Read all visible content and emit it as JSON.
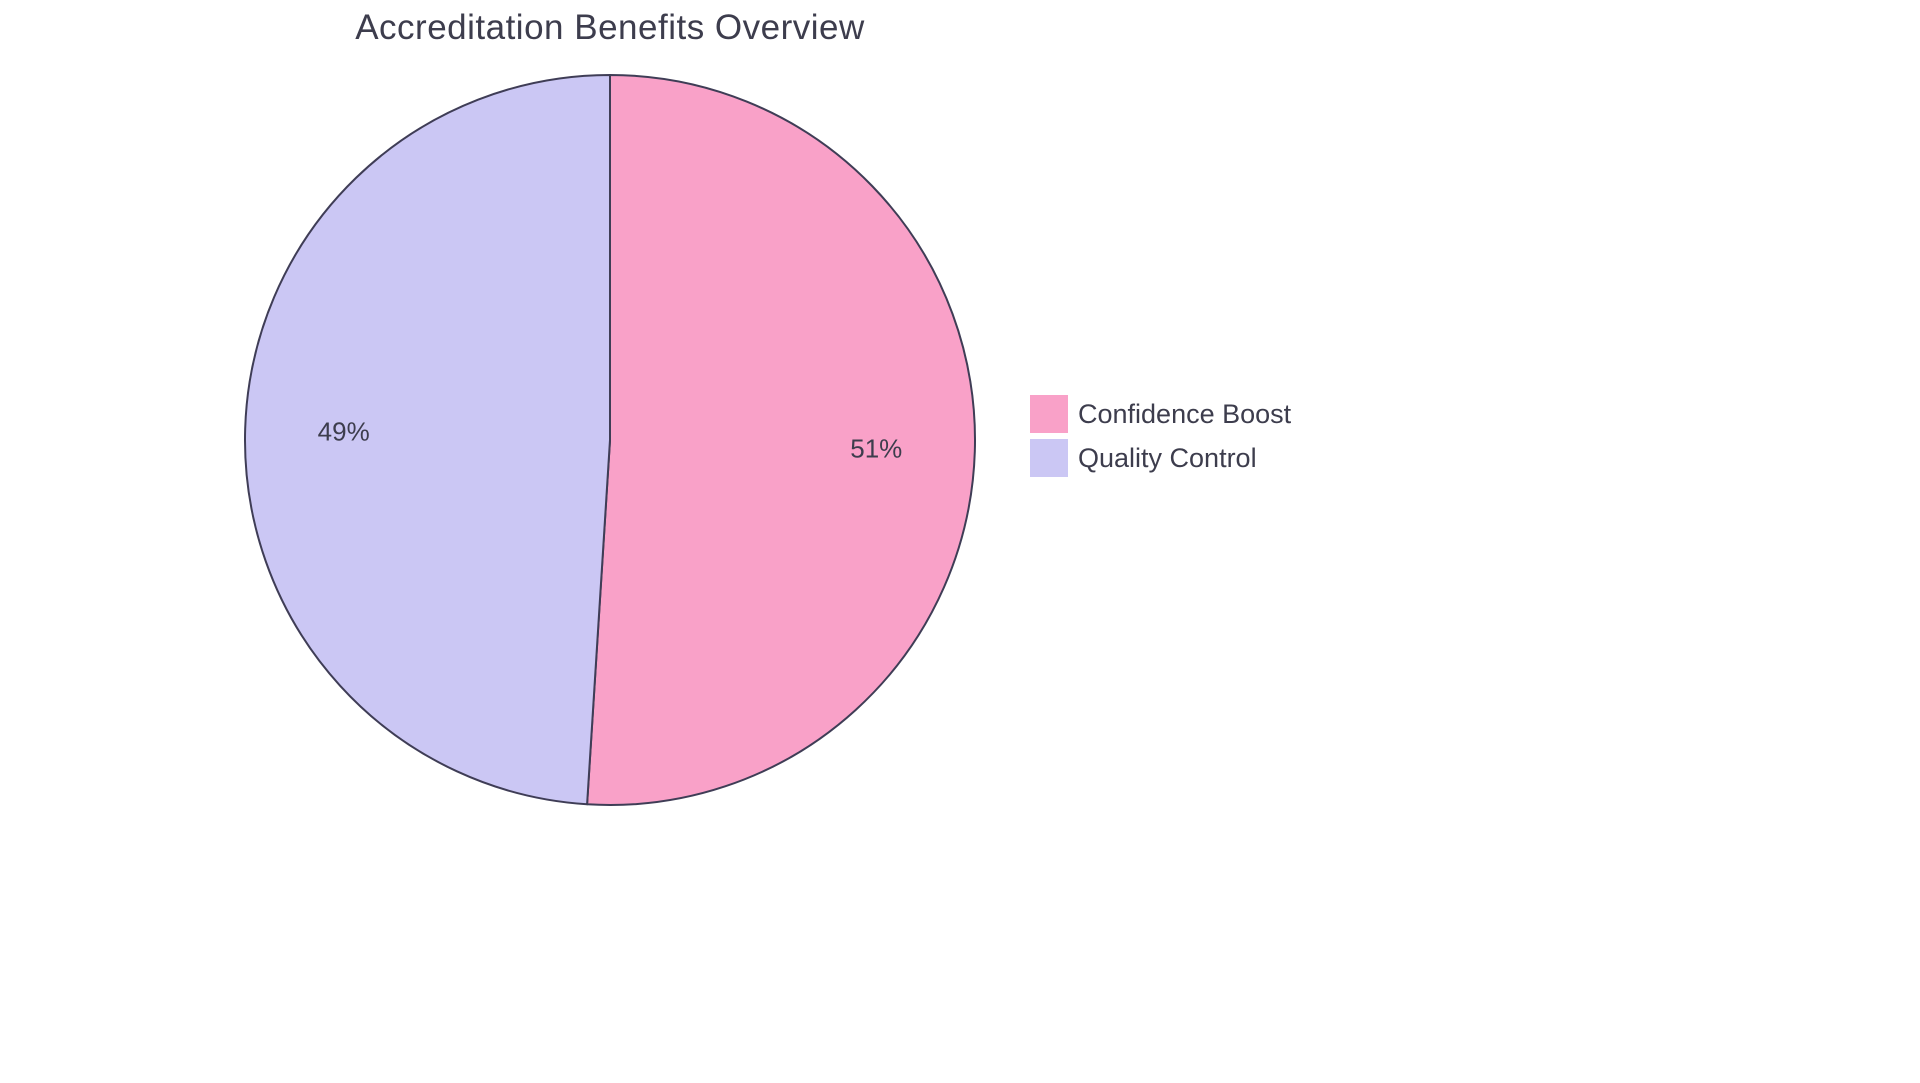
{
  "chart_data": {
    "type": "pie",
    "title": "Accreditation Benefits Overview",
    "slices": [
      {
        "label": "Confidence Boost",
        "value": 51,
        "display": "51%",
        "color": "#F9A1C8"
      },
      {
        "label": "Quality Control",
        "value": 49,
        "display": "49%",
        "color": "#CBC7F4"
      }
    ],
    "legend_position": "right",
    "start_angle_deg": -90,
    "direction": "clockwise",
    "stroke_color": "#3F3D56",
    "text_color": "#3D3D4D",
    "background_color": "#FFFFFF"
  }
}
